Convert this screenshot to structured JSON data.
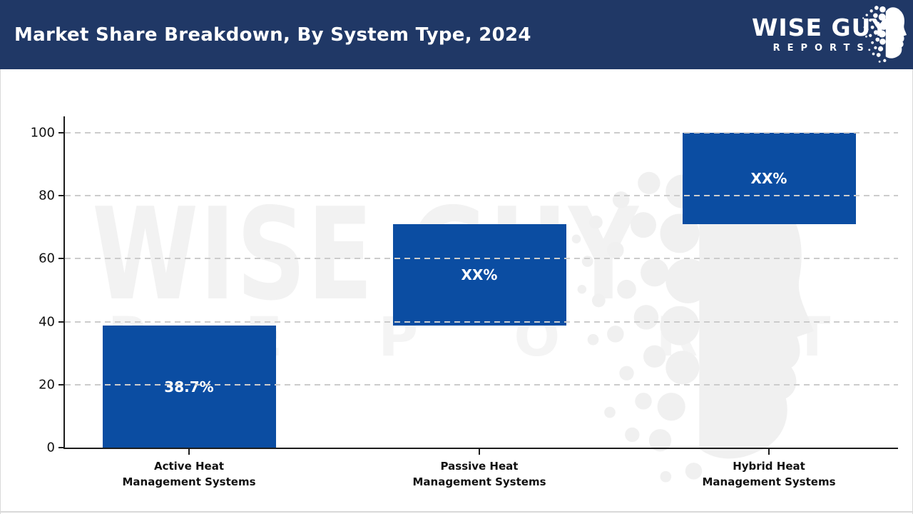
{
  "header": {
    "title": "Market Share Breakdown, By System Type, 2024",
    "logo": {
      "line1": "WISE GUY",
      "line2": "REPORTS"
    }
  },
  "watermark": {
    "line1": "WISE GUY",
    "line2": "REPORTS"
  },
  "colors": {
    "header_bg": "#203866",
    "bar": "#0b4da2",
    "grid": "#cccccc",
    "axis": "#1c1c1c",
    "bar_label": "#ffffff",
    "watermark": "#f2f2f2",
    "frame_border": "#d9d9d9"
  },
  "chart_data": {
    "type": "bar",
    "subtype": "waterfall",
    "title": "Market Share Breakdown, By System Type, 2024",
    "categories": [
      [
        "Active Heat",
        "Management Systems"
      ],
      [
        "Passive Heat",
        "Management Systems"
      ],
      [
        "Hybrid Heat",
        "Management Systems"
      ]
    ],
    "segments": [
      {
        "start": 0,
        "end": 38.7,
        "value": 38.7,
        "label": "38.7%"
      },
      {
        "start": 38.7,
        "end": 71,
        "value": 32.3,
        "label": "XX%"
      },
      {
        "start": 71,
        "end": 100,
        "value": 29,
        "label": "XX%"
      }
    ],
    "xlabel": "",
    "ylabel": "",
    "ylim": [
      0,
      100
    ],
    "yticks": [
      0,
      20,
      40,
      60,
      80,
      100
    ],
    "grid": "horizontal-dashed",
    "legend": "none",
    "bar_color": "#0b4da2"
  }
}
